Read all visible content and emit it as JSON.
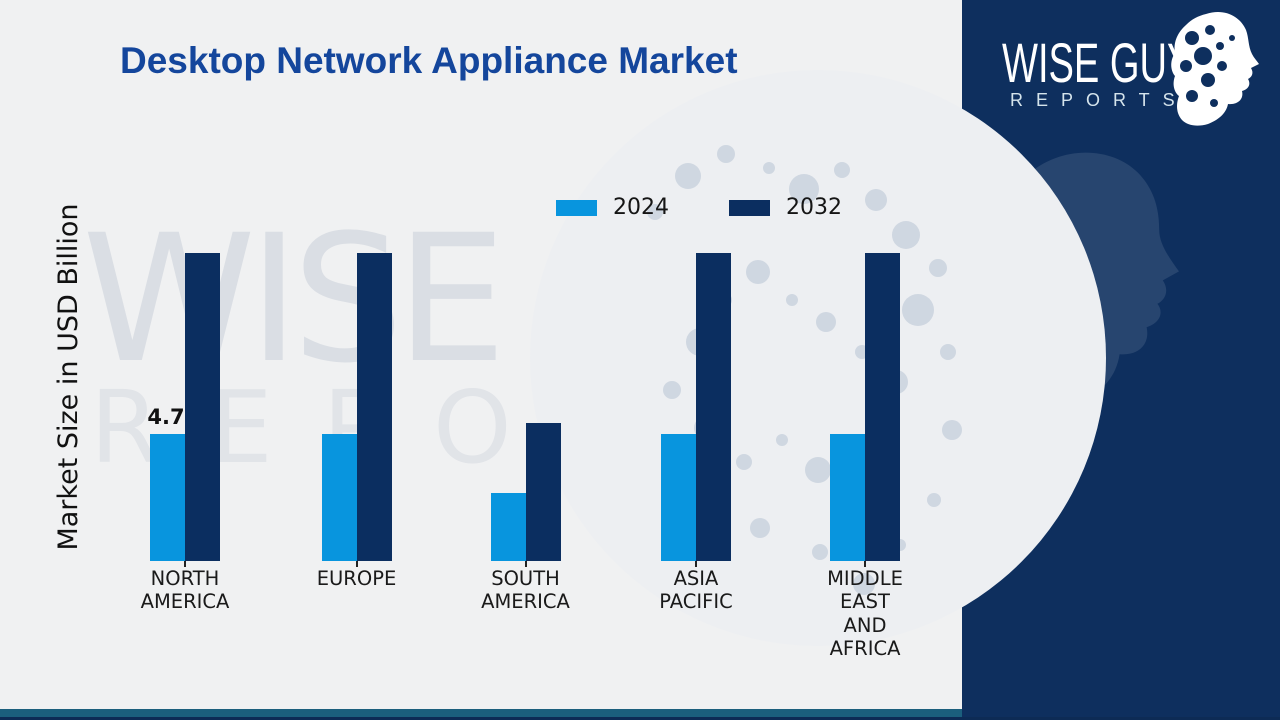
{
  "branding": {
    "logo_line1": "WISE GUY",
    "logo_line2": "REPORTS",
    "watermark_line1": "WISE GUY",
    "watermark_line2": "REPORTS"
  },
  "colors": {
    "title": "#14469c",
    "bar_2024": "#0895de",
    "bar_2032": "#0b2e60",
    "panel_navy": "#0e2f5e",
    "footer_teal": "#1b5f7d",
    "footer_navy": "#0d2b55",
    "background": "#f0f1f2"
  },
  "chart_data": {
    "type": "bar",
    "title": "Desktop Network Appliance Market",
    "ylabel": "Market Size in USD Billion",
    "xlabel": "",
    "grid": false,
    "legend_position": "top-center",
    "ylim": [
      0,
      12
    ],
    "categories": [
      "NORTH AMERICA",
      "EUROPE",
      "SOUTH AMERICA",
      "ASIA PACIFIC",
      "MIDDLE EAST AND AFRICA"
    ],
    "category_label_lines": [
      [
        "NORTH",
        "AMERICA"
      ],
      [
        "EUROPE"
      ],
      [
        "SOUTH",
        "AMERICA"
      ],
      [
        "ASIA",
        "PACIFIC"
      ],
      [
        "MIDDLE",
        "EAST",
        "AND",
        "AFRICA"
      ]
    ],
    "series": [
      {
        "name": "2024",
        "color": "#0895de",
        "values": [
          4.7,
          4.7,
          2.5,
          4.7,
          4.7
        ]
      },
      {
        "name": "2032",
        "color": "#0b2e60",
        "values": [
          11.4,
          11.4,
          5.1,
          11.4,
          11.4
        ]
      }
    ],
    "data_labels": [
      {
        "category": "NORTH AMERICA",
        "series": "2024",
        "text": "4.7"
      }
    ]
  }
}
